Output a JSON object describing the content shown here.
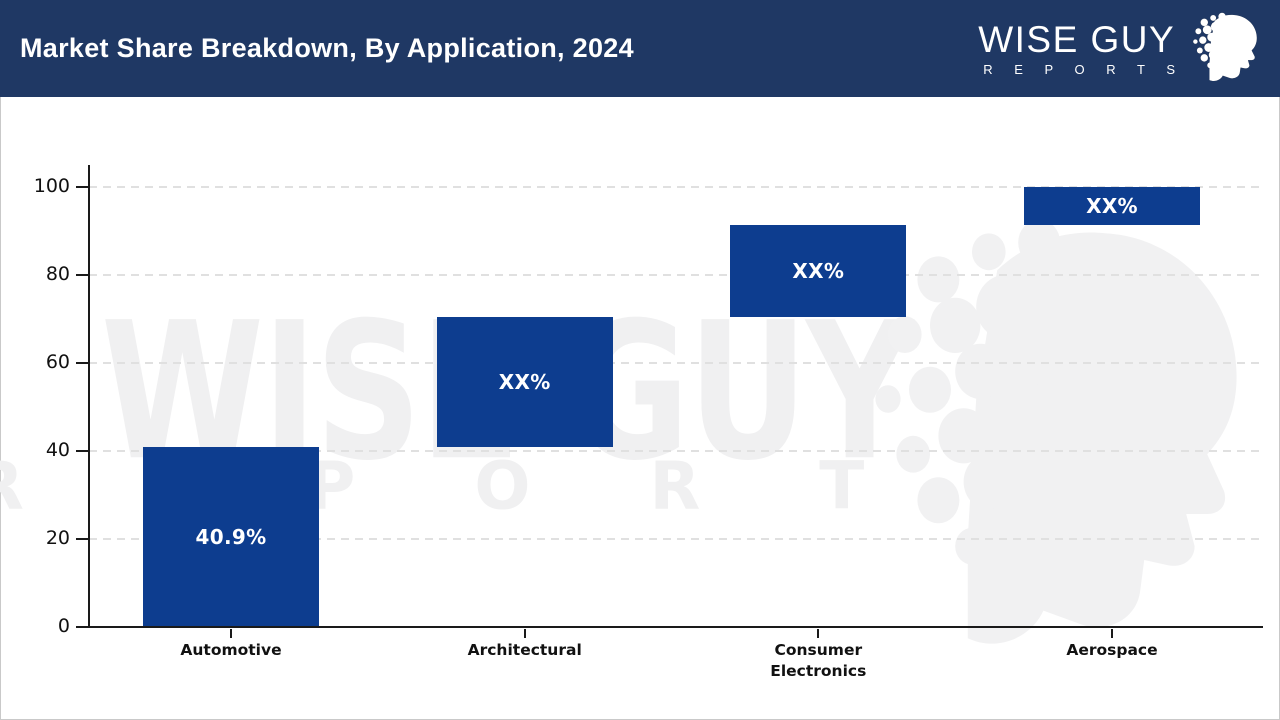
{
  "header": {
    "title": "Market Share Breakdown, By Application, 2024",
    "logo": {
      "wordmark": "WISE GUY",
      "subtext": "R E P O R T S"
    }
  },
  "watermark": {
    "wordmark": "WISE GUY",
    "subtext": "R E P O R T S"
  },
  "colors": {
    "header_bg": "#1f3864",
    "bar_fill": "#0d3d8f",
    "bar_label_text": "#ffffff",
    "grid_line": "#e0e0e0",
    "axis_line": "#1a1a1a",
    "tick_label": "#111111",
    "watermark_gray": "#f0f0f1",
    "frame_border": "#c9c9c9"
  },
  "chart_data": {
    "type": "bar",
    "variant": "waterfall",
    "title": "Market Share Breakdown, By Application, 2024",
    "categories": [
      "Automotive",
      "Architectural",
      "Consumer Electronics",
      "Aerospace"
    ],
    "segments": [
      {
        "category": "Automotive",
        "start": 0,
        "end": 40.9,
        "label": "40.9%"
      },
      {
        "category": "Architectural",
        "start": 40.9,
        "end": 70.3,
        "label": "XX%"
      },
      {
        "category": "Consumer Electronics",
        "start": 70.3,
        "end": 91.3,
        "label": "XX%"
      },
      {
        "category": "Aerospace",
        "start": 91.3,
        "end": 100,
        "label": "XX%"
      }
    ],
    "y_ticks": [
      0,
      20,
      40,
      60,
      80,
      100
    ],
    "ylim": [
      0,
      100
    ],
    "xlabel": "",
    "ylabel": "",
    "grid": "horizontal-dashed",
    "legend": "none"
  }
}
